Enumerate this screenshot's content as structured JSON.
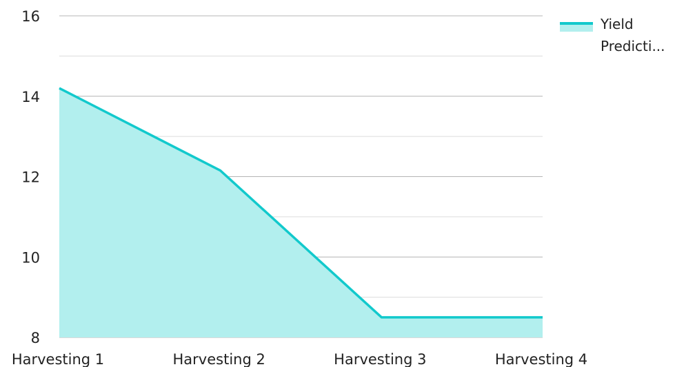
{
  "chart_data": {
    "type": "area",
    "categories": [
      "Harvesting 1",
      "Harvesting 2",
      "Harvesting 3",
      "Harvesting 4"
    ],
    "series": [
      {
        "name": "Yield Predicti...",
        "values": [
          14.2,
          12.15,
          8.5,
          8.5
        ]
      }
    ],
    "ylim": [
      8,
      16
    ],
    "yticks": [
      8,
      10,
      12,
      14,
      16
    ],
    "grid": true,
    "legend_position": "top-right",
    "legend_lines": [
      "Yield",
      "Predicti..."
    ]
  },
  "colors": {
    "line": "#12c9cc",
    "fill": "#b2efee",
    "grid_major": "#b4b4b4",
    "grid_minor": "#dcdcdc",
    "text": "#222222"
  }
}
